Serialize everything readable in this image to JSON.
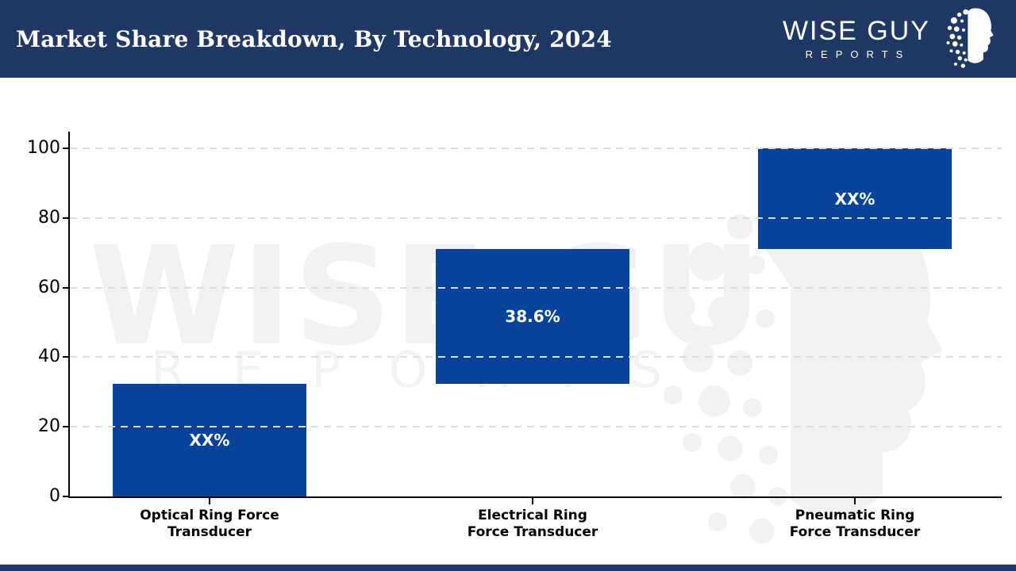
{
  "header": {
    "title": "Market Share Breakdown, By Technology, 2024",
    "logo": {
      "brand": "WISE GUY",
      "sub": "REPORTS"
    }
  },
  "watermark": {
    "brand": "WISE GUY",
    "sub": "REPORTS"
  },
  "chart_data": {
    "type": "bar",
    "subtype": "floating-segment-waterfall",
    "title": "Market Share Breakdown, By Technology, 2024",
    "categories": [
      "Optical Ring Force Transducer",
      "Electrical Ring Force Transducer",
      "Pneumatic Ring Force Transducer"
    ],
    "category_lines": [
      [
        "Optical Ring Force",
        "Transducer"
      ],
      [
        "Electrical Ring",
        "Force Transducer"
      ],
      [
        "Pneumatic Ring",
        "Force Transducer"
      ]
    ],
    "bars": [
      {
        "category": "Optical Ring Force Transducer",
        "start": 0,
        "end": 32.4,
        "label": "XX%"
      },
      {
        "category": "Electrical Ring Force Transducer",
        "start": 32.4,
        "end": 71.0,
        "label": "38.6%",
        "value": 38.6
      },
      {
        "category": "Pneumatic Ring Force Transducer",
        "start": 71.0,
        "end": 100,
        "label": "XX%"
      }
    ],
    "ylim": [
      0,
      100
    ],
    "yticks": [
      0,
      20,
      40,
      60,
      80,
      100
    ],
    "grid": {
      "axis": "y",
      "style": "dashed",
      "color": "#dcdcdc",
      "on_top_of_bars": true
    },
    "legend": null,
    "bar_color": "#0a439b",
    "value_label_color": "#ffffff"
  },
  "colors": {
    "header_bg": "#1f3864",
    "footer_bg": "#1f3864",
    "bar": "#0a439b",
    "watermark": "#f1f1f1",
    "gridline": "#dcdcdc"
  }
}
